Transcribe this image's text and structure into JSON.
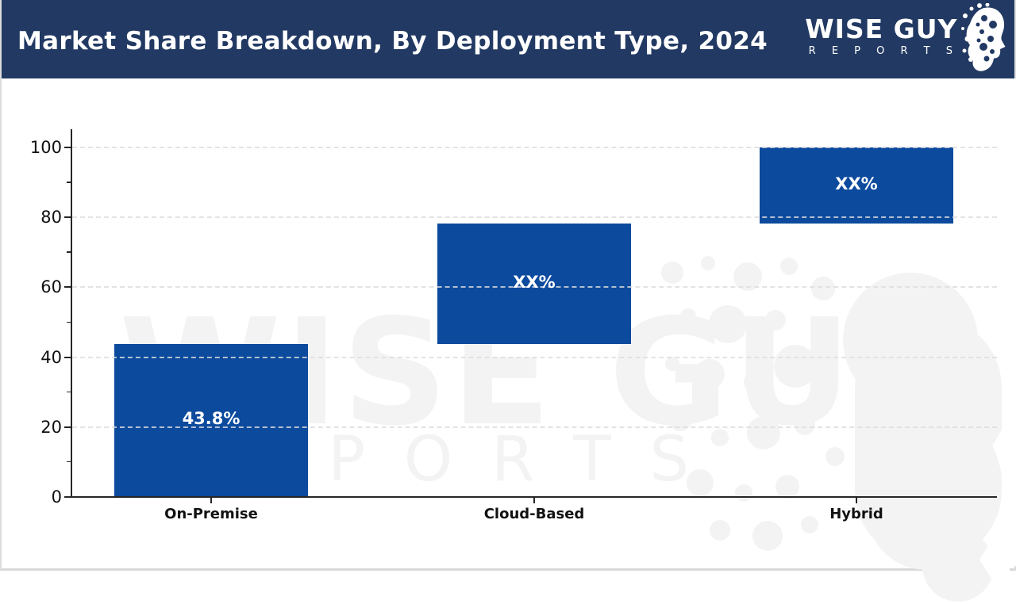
{
  "header": {
    "title": "Market Share Breakdown, By Deployment Type, 2024",
    "bg_color": "#223a63",
    "logo": {
      "line1": "WISE GUY",
      "line2": "R E P O R T S"
    }
  },
  "watermark": {
    "line1": "WISE GUY",
    "line2": "R E P O R T S"
  },
  "colors": {
    "header_bg": "#223a63",
    "bar": "#0c4a9e",
    "axis": "#262626",
    "grid": "#dddddd",
    "watermark": "#f3f3f3",
    "page_border": "#dcdcdc"
  },
  "chart_data": {
    "type": "bar",
    "subtype": "waterfall",
    "title": "Market Share Breakdown, By Deployment Type, 2024",
    "categories": [
      "On-Premise",
      "Cloud-Based",
      "Hybrid"
    ],
    "segments": [
      {
        "category": "On-Premise",
        "start": 0,
        "end": 43.8,
        "label": "43.8%"
      },
      {
        "category": "Cloud-Based",
        "start": 43.8,
        "end": 78.2,
        "label": "XX%"
      },
      {
        "category": "Hybrid",
        "start": 78.2,
        "end": 100,
        "label": "XX%"
      }
    ],
    "ylim": [
      0,
      100
    ],
    "yticks": [
      0,
      20,
      40,
      60,
      80,
      100
    ],
    "minor_yticks": [
      10,
      30,
      50,
      70,
      90
    ],
    "xlabel": "",
    "ylabel": "",
    "grid": "horizontal-dashed",
    "legend": "none",
    "bar_color": "#0c4a9e",
    "bar_label_color": "#ffffff"
  }
}
